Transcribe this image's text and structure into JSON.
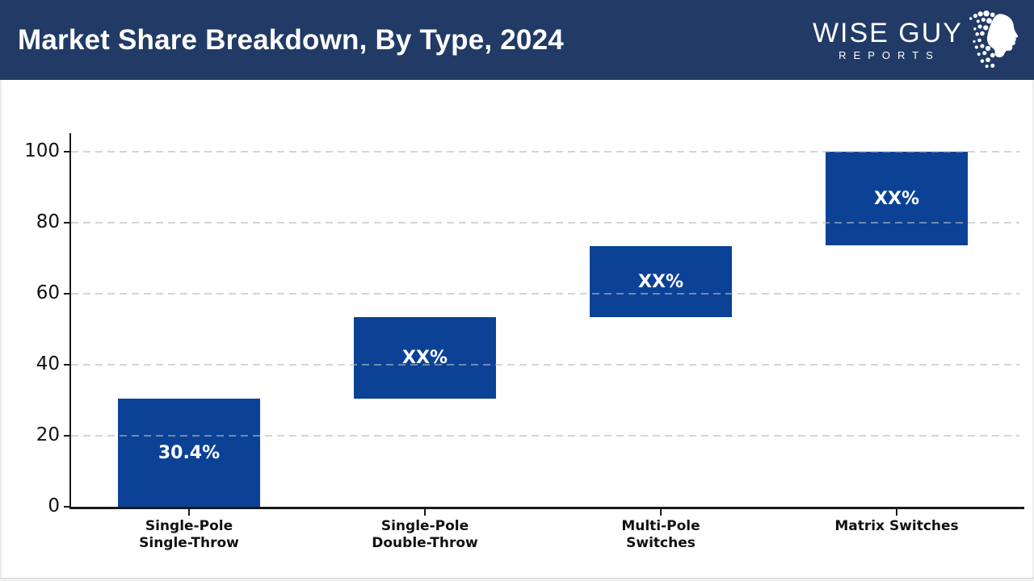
{
  "header": {
    "title": "Market Share Breakdown, By Type, 2024",
    "bg_color": "#213A66",
    "logo": {
      "line1": "WISE GUY",
      "line2": "REPORTS"
    }
  },
  "watermark": {
    "line1": "WISE GUY",
    "line2": "REPORTS"
  },
  "chart_data": {
    "type": "bar",
    "subtype": "waterfall",
    "title": "Market Share Breakdown, By Type, 2024",
    "xlabel": "",
    "ylabel": "",
    "ylim": [
      0,
      100
    ],
    "yticks": [
      0,
      20,
      40,
      60,
      80,
      100
    ],
    "grid": true,
    "legend": false,
    "bar_color": "#0B4296",
    "categories": [
      [
        "Single-Pole",
        "Single-Throw"
      ],
      [
        "Single-Pole",
        "Double-Throw"
      ],
      [
        "Multi-Pole",
        "Switches"
      ],
      [
        "Matrix Switches"
      ]
    ],
    "segments": [
      {
        "start": 0,
        "end": 30.4,
        "label": "30.4%"
      },
      {
        "start": 30.4,
        "end": 53.4,
        "label": "XX%"
      },
      {
        "start": 53.4,
        "end": 73.4,
        "label": "XX%"
      },
      {
        "start": 73.6,
        "end": 100,
        "label": "XX%"
      }
    ]
  }
}
